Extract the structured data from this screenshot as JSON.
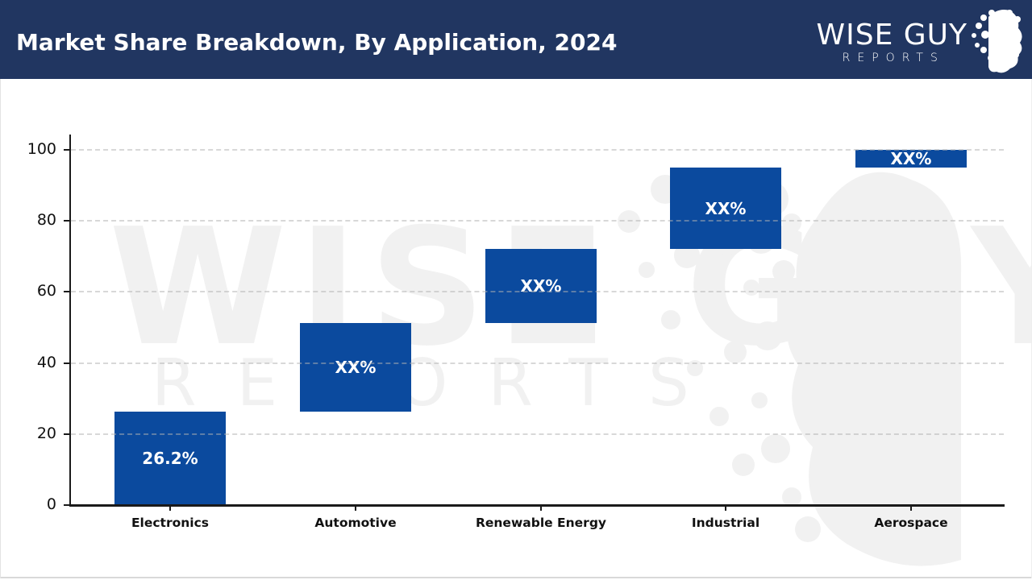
{
  "header": {
    "title": "Market Share Breakdown, By Application, 2024",
    "bg_color": "#213661",
    "text_color": "#ffffff",
    "logo": {
      "line1": "WISE GUY",
      "line2": "REPORTS"
    }
  },
  "watermark": {
    "line1": "WISE GUY",
    "line2": "REPORTS"
  },
  "chart_data": {
    "type": "bar",
    "subtype": "waterfall",
    "title": "",
    "xlabel": "",
    "ylabel": "",
    "grid": true,
    "legend": null,
    "ylim": [
      0,
      104
    ],
    "yticks": [
      0,
      20,
      40,
      60,
      80,
      100
    ],
    "bar_color": "#0b4a9e",
    "label_color": "#ffffff",
    "categories": [
      "Electronics",
      "Automotive",
      "Renewable Energy",
      "Industrial",
      "Aerospace"
    ],
    "segments": [
      {
        "category": "Electronics",
        "start": 0,
        "end": 26.2,
        "label": "26.2%"
      },
      {
        "category": "Automotive",
        "start": 26.2,
        "end": 51.2,
        "label": "XX%"
      },
      {
        "category": "Renewable Energy",
        "start": 51.2,
        "end": 72.0,
        "label": "XX%"
      },
      {
        "category": "Industrial",
        "start": 72.0,
        "end": 94.9,
        "label": "XX%"
      },
      {
        "category": "Aerospace",
        "start": 94.9,
        "end": 100.0,
        "label": "XX%"
      }
    ]
  }
}
